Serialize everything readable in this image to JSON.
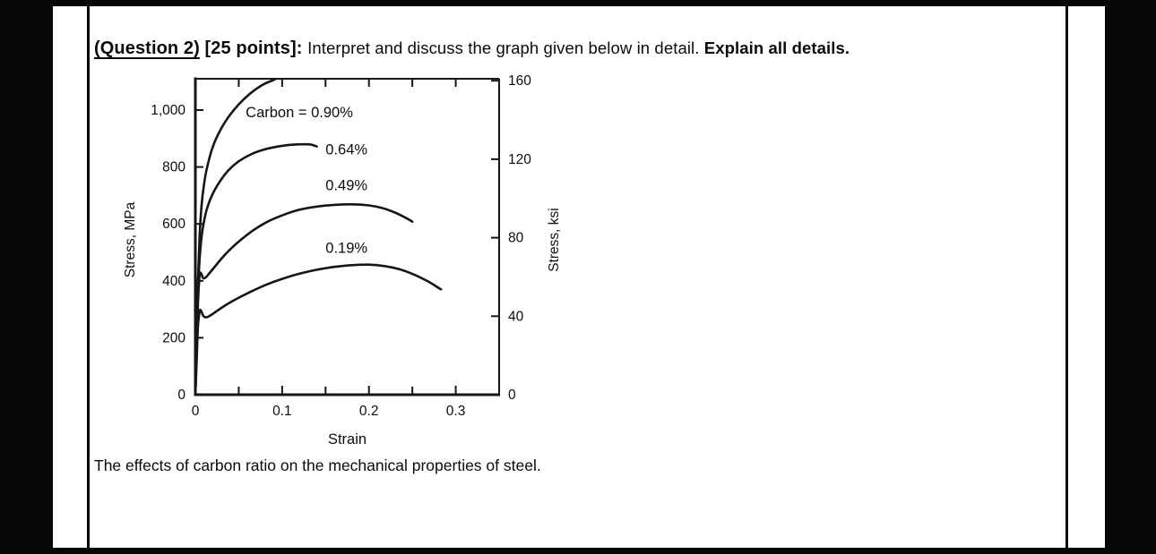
{
  "header": {
    "question": "(Question 2)",
    "points": " [25 points]: ",
    "instruction": "Interpret and discuss the graph given below in detail. ",
    "emphasis": "Explain all details."
  },
  "caption": "The effects of carbon ratio on the mechanical properties of steel.",
  "colors": {
    "ink": "#161616",
    "page_bg": "#ffffff",
    "outer_bg": "#060606"
  },
  "chart_data": {
    "type": "line",
    "title": "",
    "xlabel": "Strain",
    "ylabel_left": "Stress, MPa",
    "ylabel_right": "Stress, ksi",
    "xlim": [
      0,
      0.35
    ],
    "ylim_mpa": [
      0,
      1110
    ],
    "grid": false,
    "x_major_ticks": [
      0,
      0.1,
      0.2,
      0.3
    ],
    "x_major_labels": [
      "0",
      "0.1",
      "0.2",
      "0.3"
    ],
    "x_minor_ticks": [
      0.05,
      0.15,
      0.25
    ],
    "y_ticks_mpa": [
      0,
      200,
      400,
      600,
      800,
      1000
    ],
    "y_tick_labels_mpa": [
      "0",
      "200",
      "400",
      "600",
      "800",
      "1,000"
    ],
    "y_ticks_ksi": [
      0,
      40,
      80,
      120,
      160
    ],
    "ksi_to_mpa": 6.895,
    "annotations": [
      {
        "text": "Carbon = 0.90%",
        "x": 0.058,
        "y": 975
      },
      {
        "text": "0.64%",
        "x": 0.15,
        "y": 845
      },
      {
        "text": "0.49%",
        "x": 0.15,
        "y": 718
      },
      {
        "text": "0.19%",
        "x": 0.15,
        "y": 498
      }
    ],
    "series": [
      {
        "name": "0.90%",
        "carbon_pct": 0.9,
        "points": [
          [
            0,
            0
          ],
          [
            0.0015,
            200
          ],
          [
            0.003,
            400
          ],
          [
            0.005,
            560
          ],
          [
            0.007,
            660
          ],
          [
            0.01,
            740
          ],
          [
            0.014,
            805
          ],
          [
            0.02,
            870
          ],
          [
            0.028,
            925
          ],
          [
            0.038,
            975
          ],
          [
            0.05,
            1020
          ],
          [
            0.063,
            1058
          ],
          [
            0.077,
            1088
          ],
          [
            0.09,
            1106
          ],
          [
            0.1,
            1120
          ]
        ]
      },
      {
        "name": "0.64%",
        "carbon_pct": 0.64,
        "points": [
          [
            0,
            0
          ],
          [
            0.0015,
            180
          ],
          [
            0.003,
            360
          ],
          [
            0.005,
            480
          ],
          [
            0.007,
            550
          ],
          [
            0.01,
            610
          ],
          [
            0.014,
            660
          ],
          [
            0.02,
            706
          ],
          [
            0.028,
            748
          ],
          [
            0.038,
            788
          ],
          [
            0.05,
            820
          ],
          [
            0.065,
            846
          ],
          [
            0.08,
            862
          ],
          [
            0.095,
            872
          ],
          [
            0.11,
            878
          ],
          [
            0.125,
            880
          ],
          [
            0.133,
            879
          ],
          [
            0.14,
            872
          ]
        ]
      },
      {
        "name": "0.49%",
        "carbon_pct": 0.49,
        "points": [
          [
            0,
            0
          ],
          [
            0.0015,
            160
          ],
          [
            0.003,
            320
          ],
          [
            0.0045,
            408
          ],
          [
            0.0055,
            428
          ],
          [
            0.007,
            424
          ],
          [
            0.009,
            410
          ],
          [
            0.012,
            412
          ],
          [
            0.016,
            426
          ],
          [
            0.022,
            448
          ],
          [
            0.03,
            478
          ],
          [
            0.04,
            510
          ],
          [
            0.052,
            543
          ],
          [
            0.066,
            576
          ],
          [
            0.082,
            606
          ],
          [
            0.1,
            630
          ],
          [
            0.12,
            650
          ],
          [
            0.14,
            661
          ],
          [
            0.16,
            667
          ],
          [
            0.18,
            669
          ],
          [
            0.2,
            665
          ],
          [
            0.215,
            656
          ],
          [
            0.23,
            640
          ],
          [
            0.242,
            622
          ],
          [
            0.25,
            608
          ]
        ]
      },
      {
        "name": "0.19%",
        "carbon_pct": 0.19,
        "points": [
          [
            0,
            0
          ],
          [
            0.0015,
            120
          ],
          [
            0.003,
            240
          ],
          [
            0.0045,
            285
          ],
          [
            0.0055,
            298
          ],
          [
            0.007,
            292
          ],
          [
            0.009,
            278
          ],
          [
            0.012,
            272
          ],
          [
            0.016,
            276
          ],
          [
            0.022,
            288
          ],
          [
            0.03,
            305
          ],
          [
            0.04,
            324
          ],
          [
            0.052,
            344
          ],
          [
            0.066,
            365
          ],
          [
            0.082,
            387
          ],
          [
            0.1,
            407
          ],
          [
            0.12,
            425
          ],
          [
            0.14,
            439
          ],
          [
            0.16,
            449
          ],
          [
            0.18,
            455
          ],
          [
            0.2,
            457
          ],
          [
            0.218,
            452
          ],
          [
            0.235,
            441
          ],
          [
            0.252,
            422
          ],
          [
            0.268,
            398
          ],
          [
            0.283,
            370
          ]
        ]
      }
    ]
  }
}
